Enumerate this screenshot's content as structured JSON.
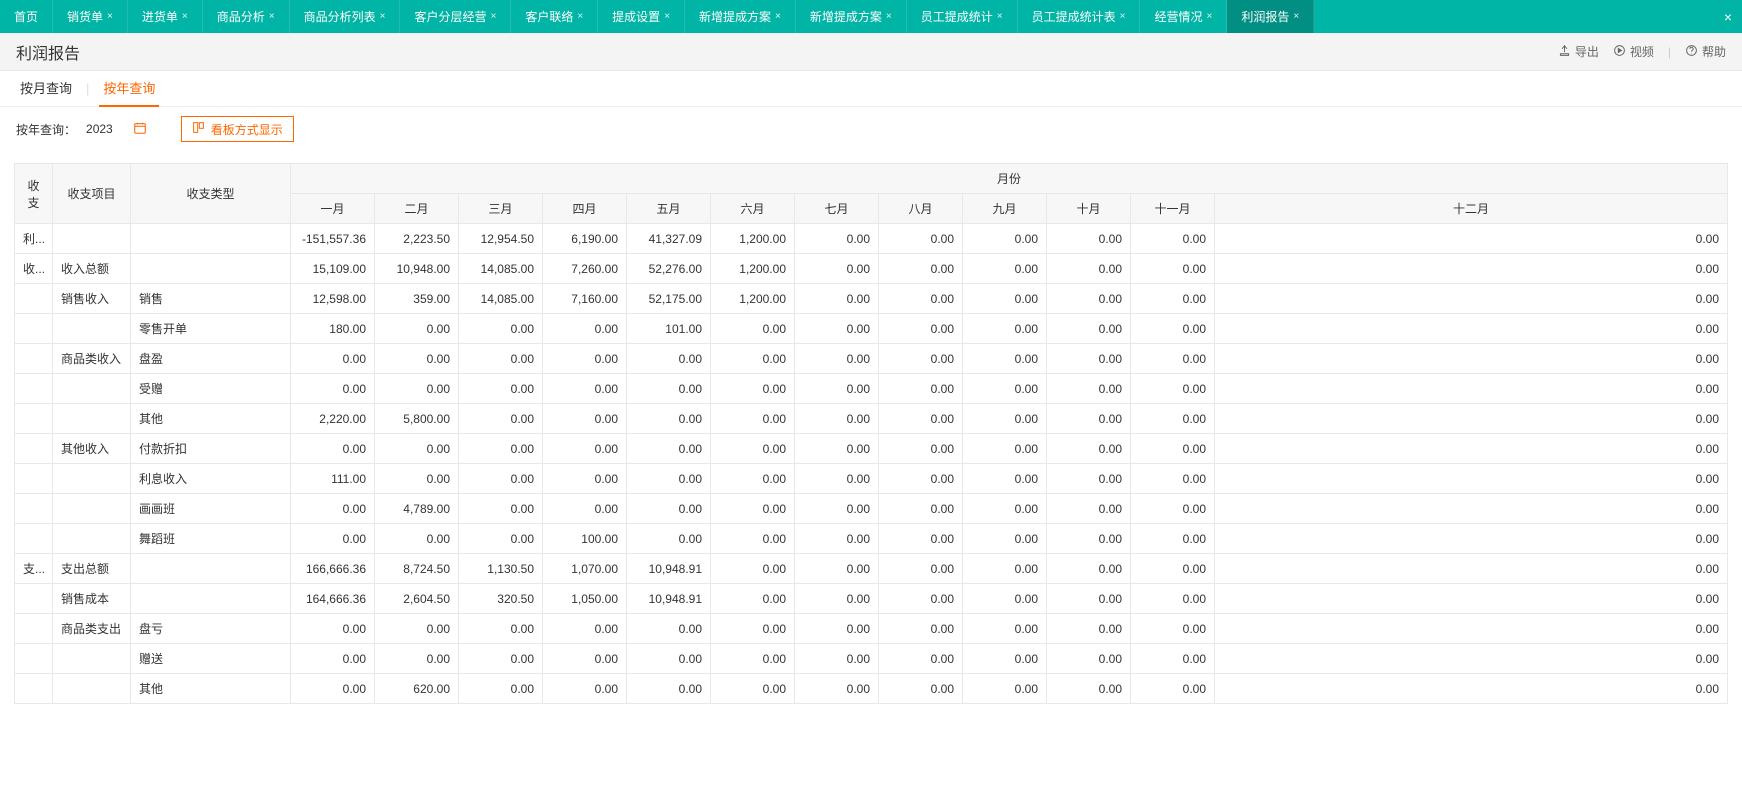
{
  "nav": {
    "tabs": [
      {
        "label": "首页",
        "closable": false
      },
      {
        "label": "销货单",
        "closable": true
      },
      {
        "label": "进货单",
        "closable": true
      },
      {
        "label": "商品分析",
        "closable": true
      },
      {
        "label": "商品分析列表",
        "closable": true
      },
      {
        "label": "客户分层经营",
        "closable": true
      },
      {
        "label": "客户联络",
        "closable": true
      },
      {
        "label": "提成设置",
        "closable": true
      },
      {
        "label": "新增提成方案",
        "closable": true
      },
      {
        "label": "新增提成方案",
        "closable": true
      },
      {
        "label": "员工提成统计",
        "closable": true
      },
      {
        "label": "员工提成统计表",
        "closable": true
      },
      {
        "label": "经营情况",
        "closable": true
      },
      {
        "label": "利润报告",
        "closable": true,
        "active": true
      }
    ],
    "close_all": "×"
  },
  "title_bar": {
    "title": "利润报告",
    "export": "导出",
    "video": "视频",
    "help": "帮助"
  },
  "sub_tabs": {
    "monthly": "按月查询",
    "yearly": "按年查询"
  },
  "filter": {
    "label": "按年查询：",
    "year": "2023",
    "kanban_btn": "看板方式显示"
  },
  "table": {
    "header": {
      "shouzhi": "收支",
      "item": "收支项目",
      "type": "收支类型",
      "month_group": "月份",
      "months": [
        "一月",
        "二月",
        "三月",
        "四月",
        "五月",
        "六月",
        "七月",
        "八月",
        "九月",
        "十月",
        "十一月",
        "十二月"
      ]
    },
    "rows": [
      {
        "shouzhi": "利...",
        "item": "",
        "type": "",
        "vals": [
          "-151,557.36",
          "2,223.50",
          "12,954.50",
          "6,190.00",
          "41,327.09",
          "1,200.00",
          "0.00",
          "0.00",
          "0.00",
          "0.00",
          "0.00",
          "0.00"
        ]
      },
      {
        "shouzhi": "收...",
        "item": "收入总额",
        "type": "",
        "vals": [
          "15,109.00",
          "10,948.00",
          "14,085.00",
          "7,260.00",
          "52,276.00",
          "1,200.00",
          "0.00",
          "0.00",
          "0.00",
          "0.00",
          "0.00",
          "0.00"
        ]
      },
      {
        "shouzhi": "",
        "item": "销售收入",
        "type": "销售",
        "vals": [
          "12,598.00",
          "359.00",
          "14,085.00",
          "7,160.00",
          "52,175.00",
          "1,200.00",
          "0.00",
          "0.00",
          "0.00",
          "0.00",
          "0.00",
          "0.00"
        ]
      },
      {
        "shouzhi": "",
        "item": "",
        "type": "零售开单",
        "vals": [
          "180.00",
          "0.00",
          "0.00",
          "0.00",
          "101.00",
          "0.00",
          "0.00",
          "0.00",
          "0.00",
          "0.00",
          "0.00",
          "0.00"
        ]
      },
      {
        "shouzhi": "",
        "item": "商品类收入",
        "type": "盘盈",
        "vals": [
          "0.00",
          "0.00",
          "0.00",
          "0.00",
          "0.00",
          "0.00",
          "0.00",
          "0.00",
          "0.00",
          "0.00",
          "0.00",
          "0.00"
        ]
      },
      {
        "shouzhi": "",
        "item": "",
        "type": "受赠",
        "vals": [
          "0.00",
          "0.00",
          "0.00",
          "0.00",
          "0.00",
          "0.00",
          "0.00",
          "0.00",
          "0.00",
          "0.00",
          "0.00",
          "0.00"
        ]
      },
      {
        "shouzhi": "",
        "item": "",
        "type": "其他",
        "vals": [
          "2,220.00",
          "5,800.00",
          "0.00",
          "0.00",
          "0.00",
          "0.00",
          "0.00",
          "0.00",
          "0.00",
          "0.00",
          "0.00",
          "0.00"
        ]
      },
      {
        "shouzhi": "",
        "item": "其他收入",
        "type": "付款折扣",
        "vals": [
          "0.00",
          "0.00",
          "0.00",
          "0.00",
          "0.00",
          "0.00",
          "0.00",
          "0.00",
          "0.00",
          "0.00",
          "0.00",
          "0.00"
        ]
      },
      {
        "shouzhi": "",
        "item": "",
        "type": "利息收入",
        "vals": [
          "111.00",
          "0.00",
          "0.00",
          "0.00",
          "0.00",
          "0.00",
          "0.00",
          "0.00",
          "0.00",
          "0.00",
          "0.00",
          "0.00"
        ]
      },
      {
        "shouzhi": "",
        "item": "",
        "type": "画画班",
        "vals": [
          "0.00",
          "4,789.00",
          "0.00",
          "0.00",
          "0.00",
          "0.00",
          "0.00",
          "0.00",
          "0.00",
          "0.00",
          "0.00",
          "0.00"
        ]
      },
      {
        "shouzhi": "",
        "item": "",
        "type": "舞蹈班",
        "vals": [
          "0.00",
          "0.00",
          "0.00",
          "100.00",
          "0.00",
          "0.00",
          "0.00",
          "0.00",
          "0.00",
          "0.00",
          "0.00",
          "0.00"
        ]
      },
      {
        "shouzhi": "支...",
        "item": "支出总额",
        "type": "",
        "vals": [
          "166,666.36",
          "8,724.50",
          "1,130.50",
          "1,070.00",
          "10,948.91",
          "0.00",
          "0.00",
          "0.00",
          "0.00",
          "0.00",
          "0.00",
          "0.00"
        ]
      },
      {
        "shouzhi": "",
        "item": "销售成本",
        "type": "",
        "vals": [
          "164,666.36",
          "2,604.50",
          "320.50",
          "1,050.00",
          "10,948.91",
          "0.00",
          "0.00",
          "0.00",
          "0.00",
          "0.00",
          "0.00",
          "0.00"
        ]
      },
      {
        "shouzhi": "",
        "item": "商品类支出",
        "type": "盘亏",
        "vals": [
          "0.00",
          "0.00",
          "0.00",
          "0.00",
          "0.00",
          "0.00",
          "0.00",
          "0.00",
          "0.00",
          "0.00",
          "0.00",
          "0.00"
        ]
      },
      {
        "shouzhi": "",
        "item": "",
        "type": "赠送",
        "vals": [
          "0.00",
          "0.00",
          "0.00",
          "0.00",
          "0.00",
          "0.00",
          "0.00",
          "0.00",
          "0.00",
          "0.00",
          "0.00",
          "0.00"
        ]
      },
      {
        "shouzhi": "",
        "item": "",
        "type": "其他",
        "vals": [
          "0.00",
          "620.00",
          "0.00",
          "0.00",
          "0.00",
          "0.00",
          "0.00",
          "0.00",
          "0.00",
          "0.00",
          "0.00",
          "0.00"
        ]
      }
    ]
  }
}
